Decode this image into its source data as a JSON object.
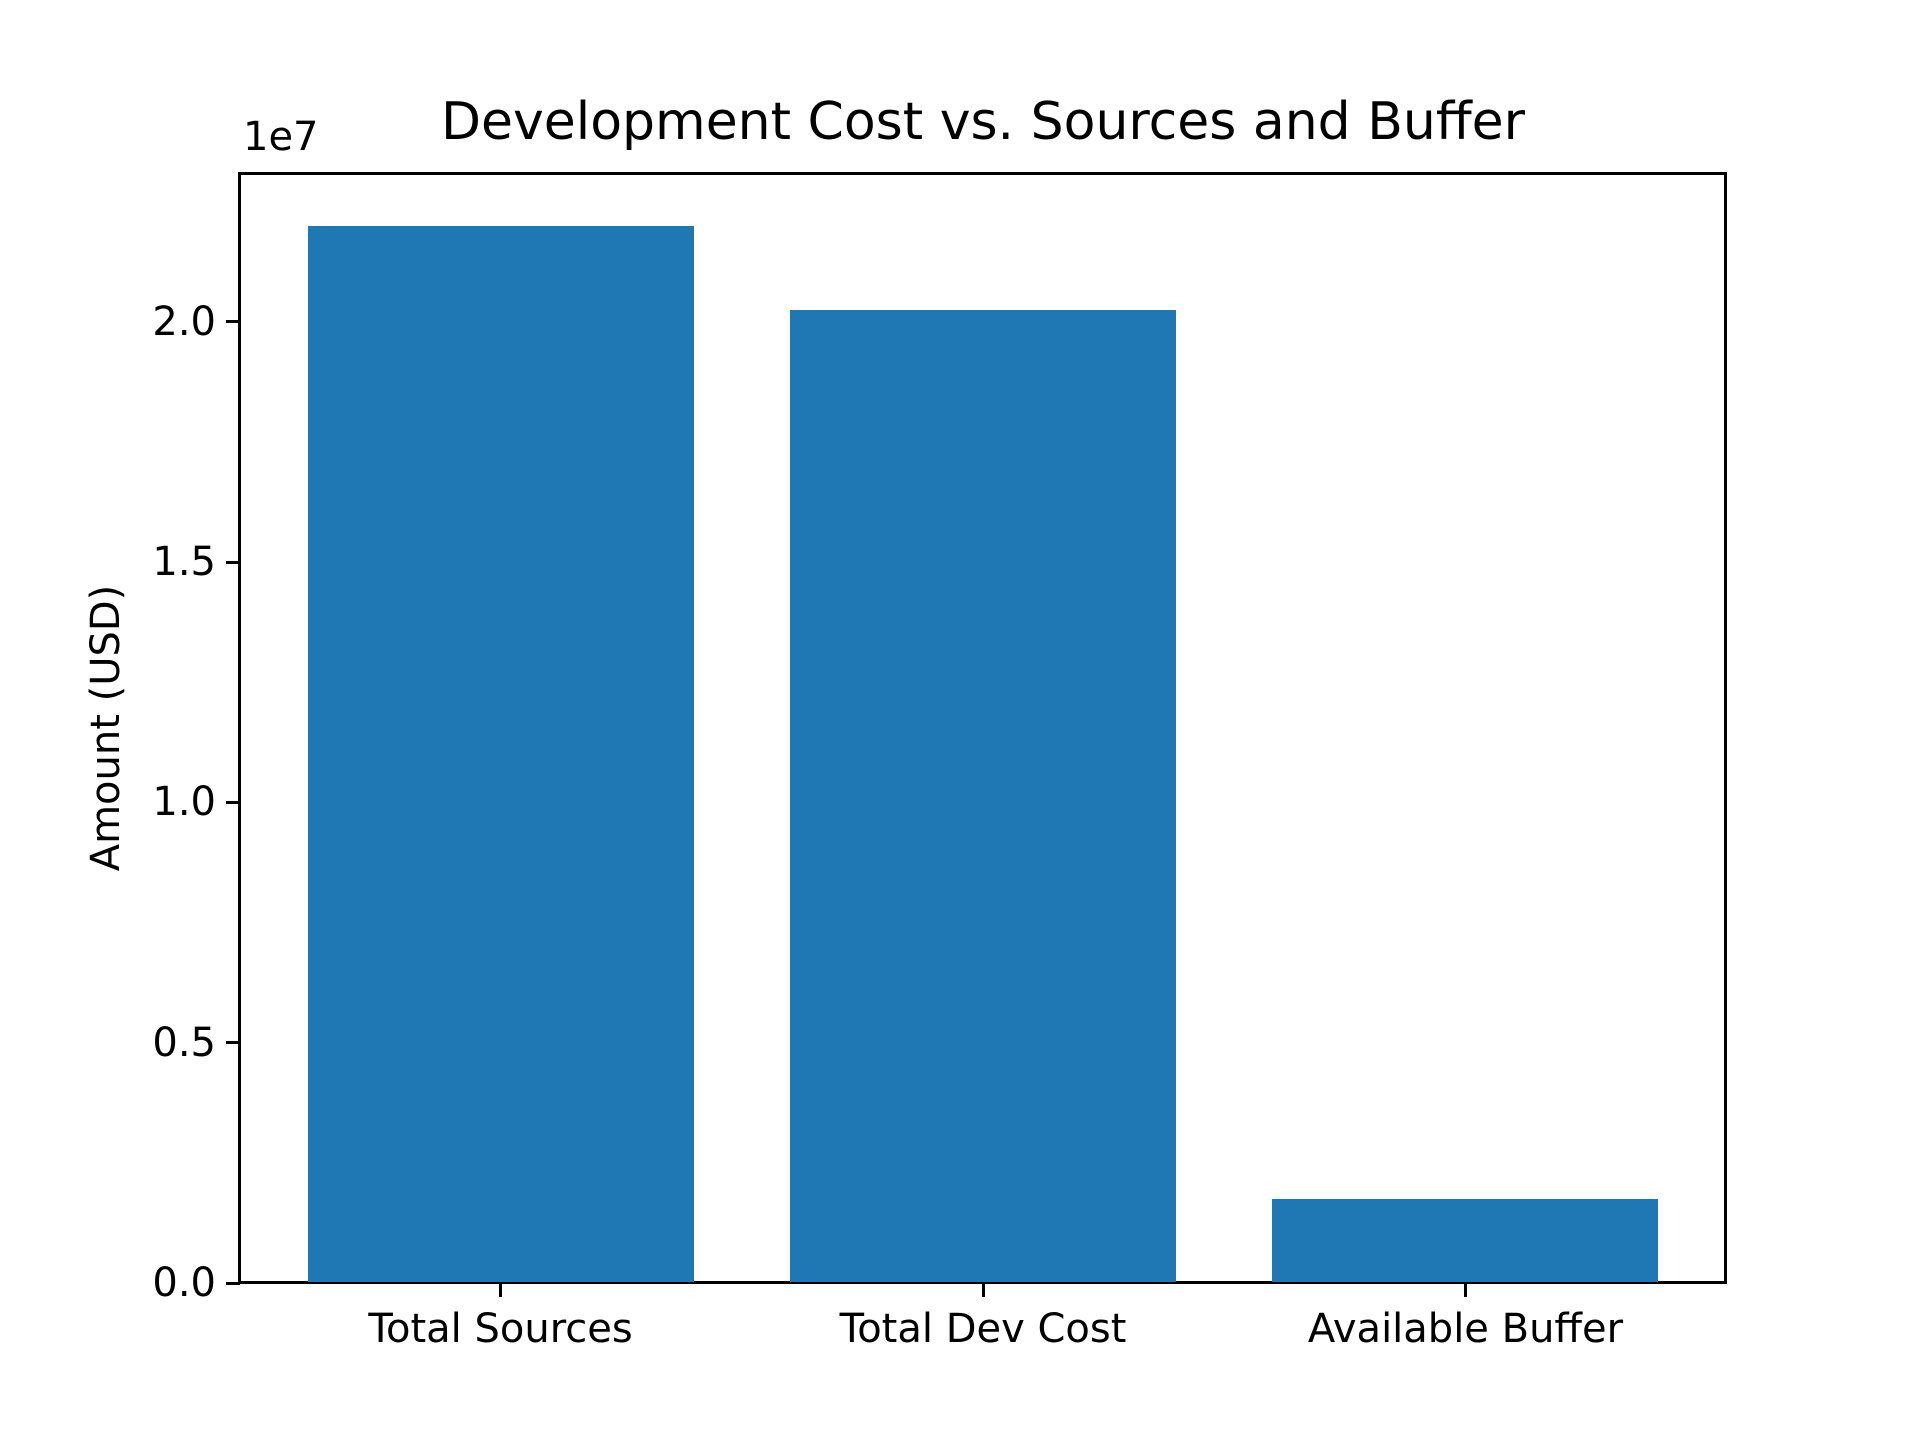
{
  "chart_data": {
    "type": "bar",
    "title": "Development Cost vs. Sources and Buffer",
    "ylabel": "Amount (USD)",
    "xlabel": "",
    "y_offset_label": "1e7",
    "categories": [
      "Total Sources",
      "Total Dev Cost",
      "Available Buffer"
    ],
    "values": [
      22000000,
      20250000,
      1750000
    ],
    "ylim": [
      0,
      23100000
    ],
    "xlim": [
      -0.54,
      2.54
    ],
    "yticks": {
      "values": [
        0,
        5000000,
        10000000,
        15000000,
        20000000
      ],
      "labels": [
        "0.0",
        "0.5",
        "1.0",
        "1.5",
        "2.0"
      ]
    },
    "bar_width_units": 0.8,
    "bar_color": "#1f77b4",
    "axis_color": "#000000",
    "text_color": "#000000",
    "background_color": "#ffffff",
    "grid": false,
    "legend": "none"
  }
}
